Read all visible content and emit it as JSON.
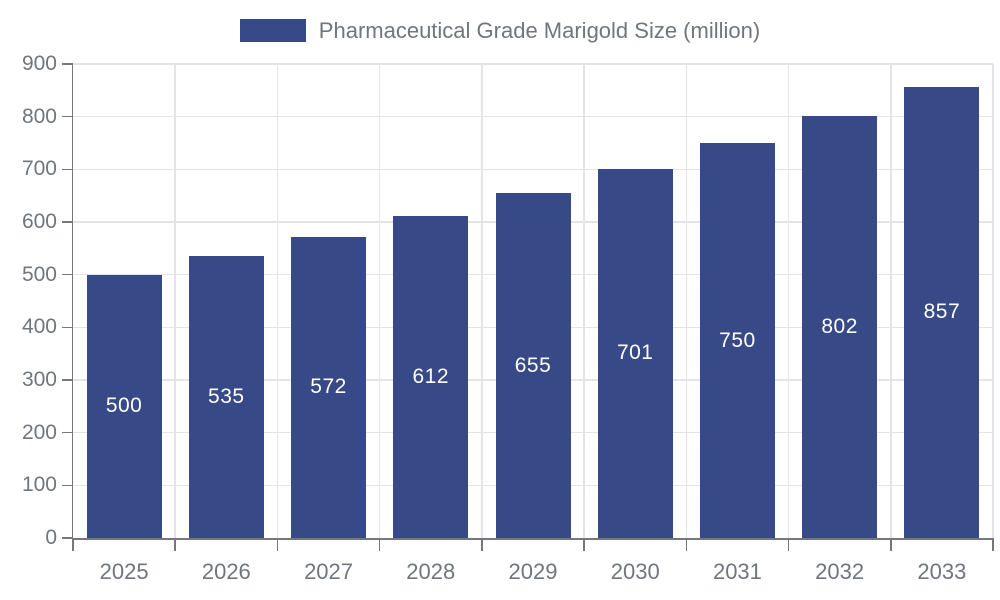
{
  "chart_data": {
    "type": "bar",
    "title": "Pharmaceutical Grade Marigold Size (million)",
    "categories": [
      "2025",
      "2026",
      "2027",
      "2028",
      "2029",
      "2030",
      "2031",
      "2032",
      "2033"
    ],
    "values": [
      500,
      535,
      572,
      612,
      655,
      701,
      750,
      802,
      857
    ],
    "xlabel": "",
    "ylabel": "",
    "ylim": [
      0,
      900
    ],
    "ytick_labels": [
      "0",
      "100",
      "200",
      "300",
      "400",
      "500",
      "600",
      "700",
      "800",
      "900"
    ],
    "grid": true,
    "legend_position": "top-center",
    "value_labels": "inside-center",
    "colors": {
      "bar": "#374A87",
      "grid": "#E3E4E8",
      "axis": "#75777D",
      "text": "#71757C",
      "value_label": "#FFFFFF",
      "background": "#FFFFFF"
    }
  }
}
